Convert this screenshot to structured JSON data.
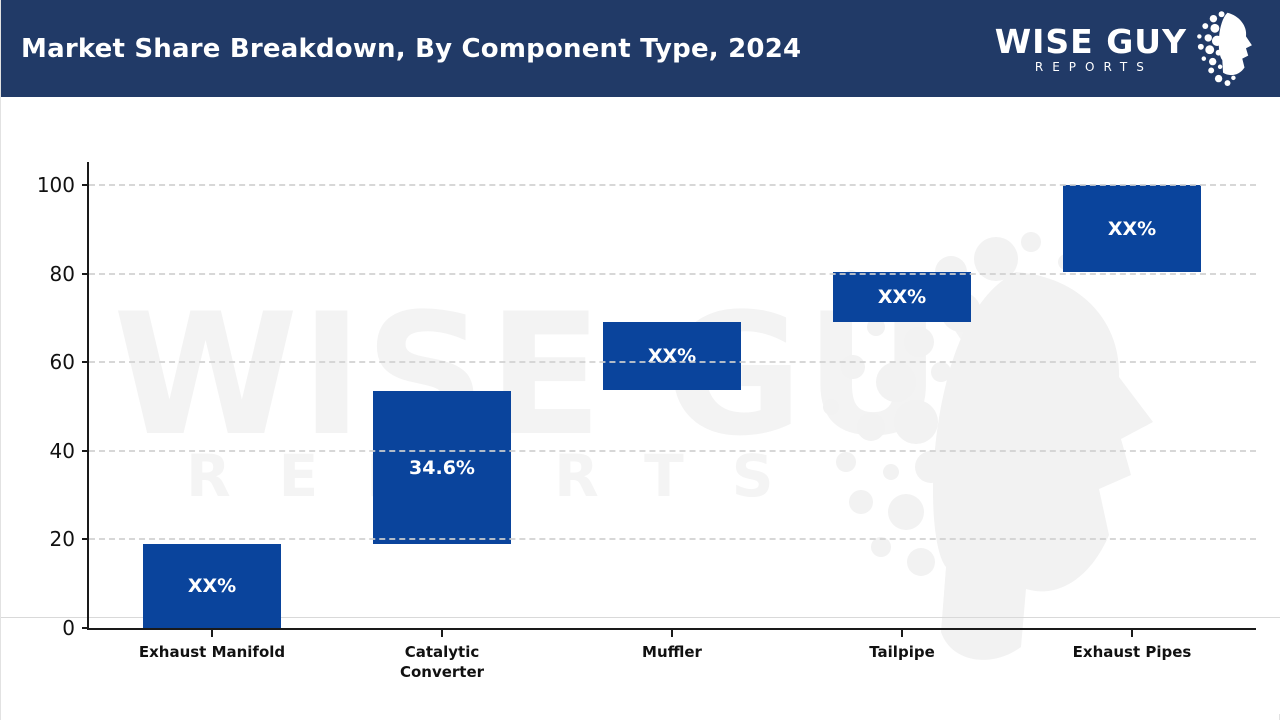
{
  "header": {
    "title": "Market Share Breakdown, By Component Type, 2024",
    "logo": {
      "line1": "WISE GUY",
      "line2": "REPORTS"
    }
  },
  "watermark": {
    "line1": "WISE GUY",
    "line2": "REPORTS"
  },
  "chart_data": {
    "type": "bar",
    "subtype": "waterfall",
    "title": "Market Share Breakdown, By Component Type, 2024",
    "categories": [
      "Exhaust Manifold",
      "Catalytic Converter",
      "Muffler",
      "Tailpipe",
      "Exhaust Pipes"
    ],
    "x_tick_labels": [
      "Exhaust Manifold",
      "Catalytic\nConverter",
      "Muffler",
      "Tailpipe",
      "Exhaust Pipes"
    ],
    "bars": [
      {
        "category": "Exhaust Manifold",
        "start": 0,
        "end": 19,
        "height": 19,
        "label": "XX%"
      },
      {
        "category": "Catalytic Converter",
        "start": 19,
        "end": 53.6,
        "height": 34.6,
        "label": "34.6%"
      },
      {
        "category": "Muffler",
        "start": 53.6,
        "end": 69,
        "height": 15.4,
        "label": "XX%"
      },
      {
        "category": "Tailpipe",
        "start": 69,
        "end": 80.4,
        "height": 11.4,
        "label": "XX%"
      },
      {
        "category": "Exhaust Pipes",
        "start": 80.4,
        "end": 100,
        "height": 19.6,
        "label": "XX%"
      }
    ],
    "y_ticks": [
      0,
      20,
      40,
      60,
      80,
      100
    ],
    "ylim": [
      0,
      105
    ],
    "xlabel": "",
    "ylabel": "",
    "grid": true,
    "grid_style": "dashed",
    "legend": "none",
    "bar_color": "#0a449c",
    "bar_label_color": "#ffffff",
    "header_color": "#213a67"
  }
}
